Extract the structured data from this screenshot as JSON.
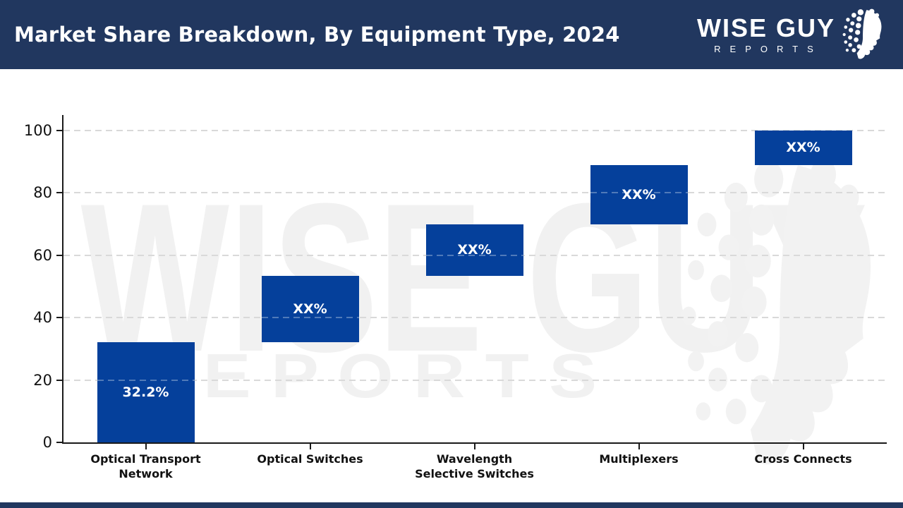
{
  "header": {
    "title": "Market Share Breakdown, By Equipment Type, 2024",
    "background_color": "#21375F",
    "logo": {
      "brand_top": "WISE GUY",
      "brand_bottom": "REPORTS",
      "head_icon": "dotted-head-profile-icon",
      "color": "#FFFFFF"
    }
  },
  "watermark": {
    "line1": "WISE GUY",
    "line2": "R E P O R T S",
    "head_icon": "dotted-head-profile-icon",
    "color": "#F1F1F1"
  },
  "footer": {
    "background_color": "#21375F"
  },
  "chart_data": {
    "type": "bar",
    "subtype": "waterfall",
    "title": "Market Share Breakdown, By Equipment Type, 2024",
    "xlabel": "",
    "ylabel": "",
    "categories": [
      "Optical Transport\nNetwork",
      "Optical Switches",
      "Wavelength\nSelective Switches",
      "Multiplexers",
      "Cross Connects"
    ],
    "series": [
      {
        "name": "Market Share (%)",
        "segments": [
          {
            "category": "Optical Transport Network",
            "start": 0,
            "end": 32.2,
            "label": "32.2%"
          },
          {
            "category": "Optical Switches",
            "start": 32.2,
            "end": 53.5,
            "label": "XX%"
          },
          {
            "category": "Wavelength Selective Switches",
            "start": 53.5,
            "end": 70,
            "label": "XX%"
          },
          {
            "category": "Multiplexers",
            "start": 70,
            "end": 89,
            "label": "XX%"
          },
          {
            "category": "Cross Connects",
            "start": 89,
            "end": 100,
            "label": "XX%"
          }
        ]
      }
    ],
    "y_ticks": [
      0,
      20,
      40,
      60,
      80,
      100
    ],
    "ylim": [
      0,
      105
    ],
    "grid": "horizontal-dashed",
    "legend": "none",
    "bar_color": "#05409B",
    "bar_label_color": "#FFFFFF",
    "gridline_color": "#D9D9D9",
    "axis_color": "#1A1A1A"
  }
}
